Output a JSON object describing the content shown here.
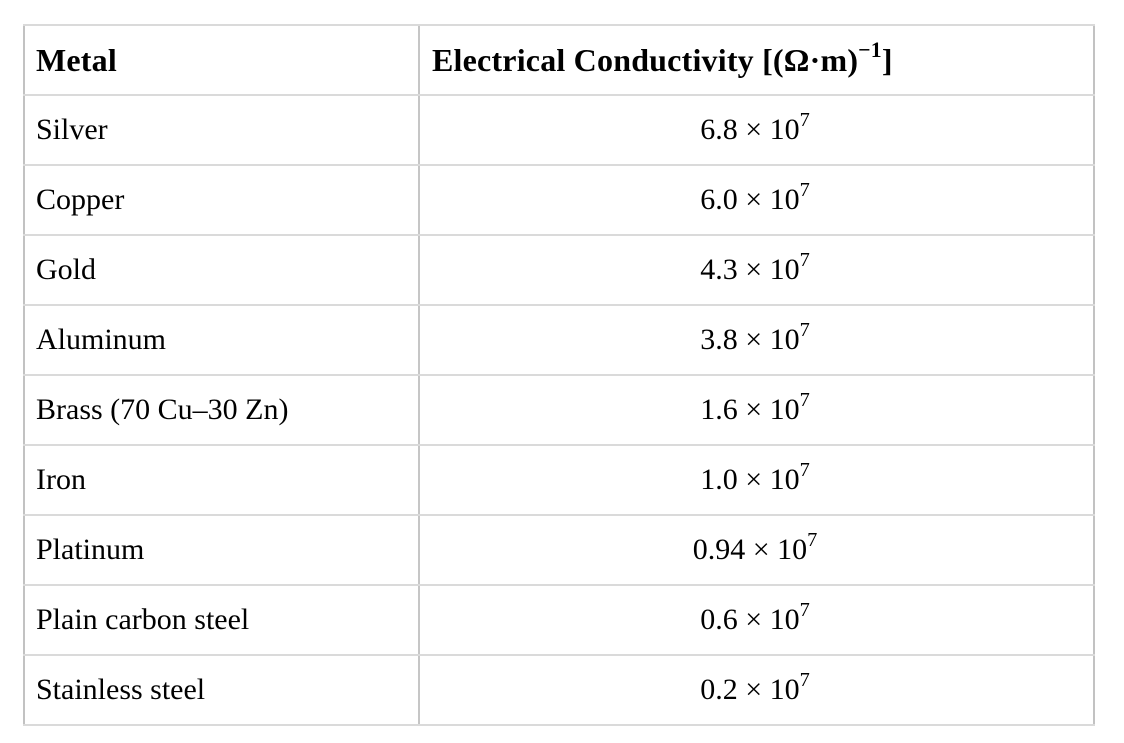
{
  "colors": {
    "background": "#ffffff",
    "text": "#000000",
    "border_outer": "#c2c2c2",
    "border_inner": "#dadada"
  },
  "table": {
    "header": {
      "metal": "Metal",
      "conductivity_prefix": "Electrical Conductivity [(Ω·m)",
      "conductivity_sup": "−1",
      "conductivity_suffix": "]"
    },
    "rows": [
      {
        "metal": "Silver",
        "value_prefix": "6.8 × 10",
        "value_exponent": "7"
      },
      {
        "metal": "Copper",
        "value_prefix": "6.0 × 10",
        "value_exponent": "7"
      },
      {
        "metal": "Gold",
        "value_prefix": "4.3 × 10",
        "value_exponent": "7"
      },
      {
        "metal": "Aluminum",
        "value_prefix": "3.8 × 10",
        "value_exponent": "7"
      },
      {
        "metal": "Brass (70 Cu–30 Zn)",
        "value_prefix": "1.6 × 10",
        "value_exponent": "7"
      },
      {
        "metal": "Iron",
        "value_prefix": "1.0 × 10",
        "value_exponent": "7"
      },
      {
        "metal": "Platinum",
        "value_prefix": "0.94 × 10",
        "value_exponent": "7"
      },
      {
        "metal": "Plain carbon steel",
        "value_prefix": "0.6 × 10",
        "value_exponent": "7"
      },
      {
        "metal": "Stainless steel",
        "value_prefix": "0.2 × 10",
        "value_exponent": "7"
      }
    ]
  },
  "chart_data": {
    "type": "table",
    "title": "",
    "columns": [
      "Metal",
      "Electrical Conductivity [(Ω·m)⁻¹]"
    ],
    "categories": [
      "Silver",
      "Copper",
      "Gold",
      "Aluminum",
      "Brass (70 Cu–30 Zn)",
      "Iron",
      "Platinum",
      "Plain carbon steel",
      "Stainless steel"
    ],
    "values_times_1e7": [
      6.8,
      6.0,
      4.3,
      3.8,
      1.6,
      1.0,
      0.94,
      0.6,
      0.2
    ],
    "values": [
      68000000,
      60000000,
      43000000,
      38000000,
      16000000,
      10000000,
      9400000,
      6000000,
      2000000
    ],
    "unit": "(Ω·m)⁻¹"
  }
}
